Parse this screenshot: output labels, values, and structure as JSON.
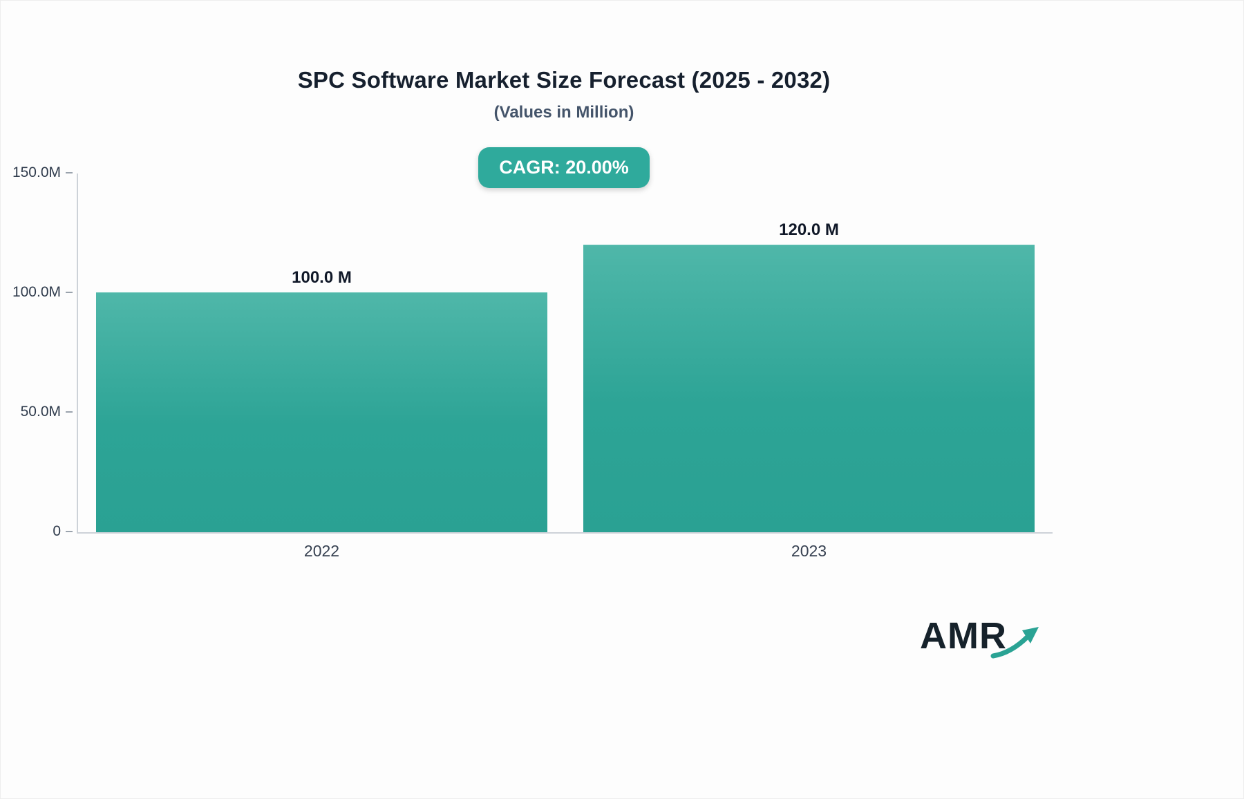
{
  "title": "SPC Software Market Size Forecast (2025 - 2032)",
  "subtitle": "(Values in Million)",
  "badge": {
    "label": "CAGR: 20.00%",
    "bg_color": "#2faa9c",
    "text_color": "#ffffff"
  },
  "logo": {
    "text": "AMR",
    "arrow_color": "#2aa394"
  },
  "colors": {
    "bar_gradient_top": "#4fb7a9",
    "bar_gradient_bottom": "#2aa193",
    "axis": "#cdd2d8",
    "title_text": "#16202e",
    "subtitle_text": "#44546a"
  },
  "chart_data": {
    "type": "bar",
    "title": "SPC Software Market Size Forecast (2025 - 2032)",
    "subtitle": "(Values in Million)",
    "cagr": "CAGR: 20.00%",
    "categories": [
      "2022",
      "2023"
    ],
    "values": [
      100,
      120
    ],
    "value_labels": [
      "100.0 M",
      "120.0 M"
    ],
    "unit": "Million",
    "xlabel": "",
    "ylabel": "",
    "ylim": [
      0,
      150
    ],
    "yticks": [
      {
        "value": 150,
        "label": "150.0M"
      },
      {
        "value": 100,
        "label": "100.0M"
      },
      {
        "value": 50,
        "label": "50.0M"
      },
      {
        "value": 0,
        "label": "0"
      }
    ],
    "grid": false,
    "legend": false
  }
}
